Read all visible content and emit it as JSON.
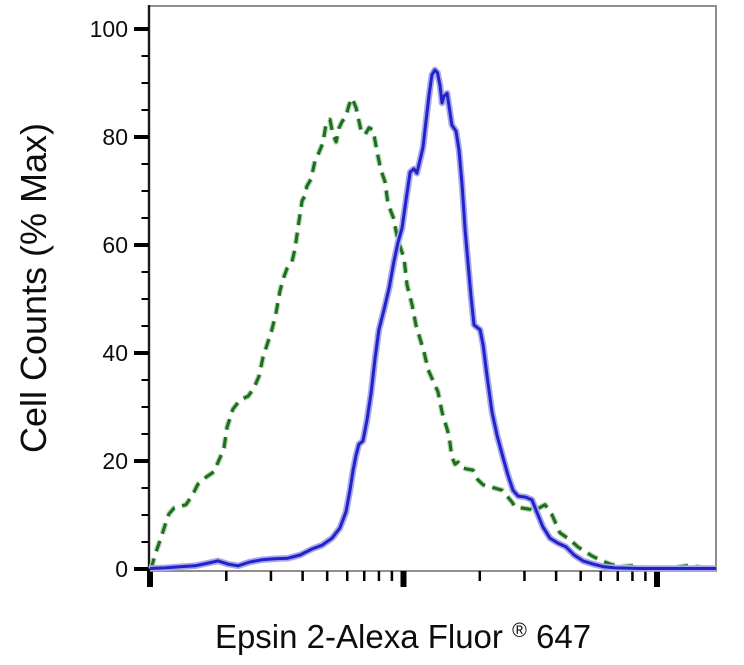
{
  "chart_data": {
    "type": "line",
    "subtype": "flow-cytometry-histogram-overlay",
    "title": "",
    "xlabel": "Epsin 2-Alexa Fluor® 647",
    "xlabel_parts": {
      "main": "Epsin 2-Alexa Fluor",
      "sup": "®",
      "suffix": " 647"
    },
    "ylabel": "Cell Counts (% Max)",
    "grid": false,
    "legend": null,
    "x_axis": {
      "scale": "log",
      "decades_shown": 2.237,
      "major_tick_decades": [
        0,
        1,
        2
      ],
      "minor_ticks": "log-spaced 2-9 per decade",
      "tick_labels_visible": false
    },
    "y_axis": {
      "min": 0,
      "max": 100,
      "major_ticks": [
        0,
        20,
        40,
        60,
        80,
        100
      ],
      "tick_labels": [
        "0",
        "20",
        "40",
        "60",
        "80",
        "100"
      ],
      "minor_tick_step": 5
    },
    "series": [
      {
        "name": "green-dashed-histogram",
        "style": "dashed",
        "color": "#1c701c",
        "halo_color": "#b9d6b9",
        "peak": {
          "u": 0.8,
          "v": 87.2
        },
        "points": [
          [
            0.004,
            0.0
          ],
          [
            0.012,
            1.3
          ],
          [
            0.024,
            3.2
          ],
          [
            0.036,
            4.8
          ],
          [
            0.047,
            6.3
          ],
          [
            0.063,
            8.7
          ],
          [
            0.075,
            10.2
          ],
          [
            0.095,
            11.3
          ],
          [
            0.142,
            11.9
          ],
          [
            0.17,
            13.9
          ],
          [
            0.189,
            15.7
          ],
          [
            0.221,
            17.0
          ],
          [
            0.252,
            18.0
          ],
          [
            0.276,
            20.6
          ],
          [
            0.292,
            22.4
          ],
          [
            0.304,
            26.3
          ],
          [
            0.327,
            29.6
          ],
          [
            0.355,
            31.3
          ],
          [
            0.387,
            32.0
          ],
          [
            0.41,
            33.5
          ],
          [
            0.43,
            35.7
          ],
          [
            0.446,
            39.3
          ],
          [
            0.465,
            42.0
          ],
          [
            0.481,
            44.3
          ],
          [
            0.497,
            47.4
          ],
          [
            0.513,
            51.5
          ],
          [
            0.525,
            53.7
          ],
          [
            0.54,
            55.6
          ],
          [
            0.56,
            56.9
          ],
          [
            0.572,
            59.3
          ],
          [
            0.584,
            63.2
          ],
          [
            0.6,
            68.2
          ],
          [
            0.611,
            69.1
          ],
          [
            0.619,
            70.9
          ],
          [
            0.635,
            72.2
          ],
          [
            0.651,
            75.6
          ],
          [
            0.667,
            77.2
          ],
          [
            0.682,
            78.9
          ],
          [
            0.694,
            82.2
          ],
          [
            0.71,
            83.2
          ],
          [
            0.722,
            80.4
          ],
          [
            0.734,
            79.1
          ],
          [
            0.746,
            81.7
          ],
          [
            0.757,
            82.8
          ],
          [
            0.773,
            83.9
          ],
          [
            0.785,
            85.9
          ],
          [
            0.797,
            87.2
          ],
          [
            0.813,
            85.4
          ],
          [
            0.832,
            81.3
          ],
          [
            0.848,
            80.4
          ],
          [
            0.864,
            81.7
          ],
          [
            0.88,
            81.3
          ],
          [
            0.896,
            77.2
          ],
          [
            0.911,
            73.9
          ],
          [
            0.927,
            71.7
          ],
          [
            0.939,
            67.6
          ],
          [
            0.959,
            65.2
          ],
          [
            0.978,
            60.9
          ],
          [
            1.002,
            57.6
          ],
          [
            1.014,
            52.6
          ],
          [
            1.034,
            48.9
          ],
          [
            1.049,
            45.2
          ],
          [
            1.081,
            40.2
          ],
          [
            1.097,
            36.9
          ],
          [
            1.136,
            32.8
          ],
          [
            1.152,
            29.1
          ],
          [
            1.179,
            24.8
          ],
          [
            1.191,
            20.7
          ],
          [
            1.203,
            19.4
          ],
          [
            1.215,
            19.8
          ],
          [
            1.231,
            18.7
          ],
          [
            1.274,
            18.3
          ],
          [
            1.294,
            16.5
          ],
          [
            1.314,
            15.6
          ],
          [
            1.389,
            14.6
          ],
          [
            1.428,
            12.4
          ],
          [
            1.44,
            11.5
          ],
          [
            1.52,
            10.9
          ],
          [
            1.558,
            11.9
          ],
          [
            1.586,
            10.0
          ],
          [
            1.617,
            6.7
          ],
          [
            1.657,
            5.4
          ],
          [
            1.688,
            4.1
          ],
          [
            1.744,
            2.4
          ],
          [
            1.783,
            1.5
          ],
          [
            1.815,
            0.9
          ],
          [
            1.854,
            0.4
          ],
          [
            1.901,
            0.6
          ],
          [
            1.945,
            0.2
          ],
          [
            1.992,
            0.1
          ],
          [
            2.043,
            0.1
          ],
          [
            2.118,
            0.6
          ],
          [
            2.157,
            0.4
          ],
          [
            2.189,
            0.1
          ],
          [
            2.233,
            0.1
          ]
        ]
      },
      {
        "name": "blue-solid-histogram",
        "style": "solid",
        "color": "#2222cc",
        "halo_color": "#a8a8ec",
        "peak": {
          "u": 1.12,
          "v": 92.4
        },
        "points": [
          [
            0.0,
            0.1
          ],
          [
            0.059,
            0.2
          ],
          [
            0.118,
            0.4
          ],
          [
            0.178,
            0.6
          ],
          [
            0.229,
            1.1
          ],
          [
            0.268,
            1.5
          ],
          [
            0.308,
            0.9
          ],
          [
            0.347,
            0.6
          ],
          [
            0.394,
            1.3
          ],
          [
            0.442,
            1.7
          ],
          [
            0.493,
            1.9
          ],
          [
            0.544,
            2.0
          ],
          [
            0.592,
            2.6
          ],
          [
            0.639,
            3.7
          ],
          [
            0.679,
            4.4
          ],
          [
            0.718,
            5.7
          ],
          [
            0.749,
            7.6
          ],
          [
            0.773,
            10.6
          ],
          [
            0.789,
            14.6
          ],
          [
            0.801,
            18.3
          ],
          [
            0.813,
            21.1
          ],
          [
            0.824,
            23.1
          ],
          [
            0.84,
            23.7
          ],
          [
            0.856,
            27.6
          ],
          [
            0.872,
            32.6
          ],
          [
            0.888,
            39.1
          ],
          [
            0.903,
            44.3
          ],
          [
            0.923,
            48.0
          ],
          [
            0.943,
            52.0
          ],
          [
            0.962,
            56.9
          ],
          [
            0.978,
            60.4
          ],
          [
            0.994,
            63.1
          ],
          [
            1.01,
            68.3
          ],
          [
            1.026,
            73.5
          ],
          [
            1.041,
            74.1
          ],
          [
            1.053,
            73.3
          ],
          [
            1.065,
            75.7
          ],
          [
            1.077,
            78.1
          ],
          [
            1.089,
            83.1
          ],
          [
            1.101,
            87.8
          ],
          [
            1.112,
            91.5
          ],
          [
            1.124,
            92.4
          ],
          [
            1.134,
            91.9
          ],
          [
            1.144,
            89.6
          ],
          [
            1.152,
            86.3
          ],
          [
            1.16,
            87.6
          ],
          [
            1.172,
            88.1
          ],
          [
            1.179,
            85.9
          ],
          [
            1.191,
            82.2
          ],
          [
            1.207,
            81.1
          ],
          [
            1.219,
            77.6
          ],
          [
            1.231,
            71.1
          ],
          [
            1.243,
            62.8
          ],
          [
            1.254,
            56.9
          ],
          [
            1.266,
            50.7
          ],
          [
            1.278,
            45.2
          ],
          [
            1.302,
            44.3
          ],
          [
            1.314,
            41.5
          ],
          [
            1.329,
            35.9
          ],
          [
            1.349,
            29.1
          ],
          [
            1.369,
            24.8
          ],
          [
            1.393,
            20.6
          ],
          [
            1.412,
            17.4
          ],
          [
            1.432,
            14.6
          ],
          [
            1.452,
            13.5
          ],
          [
            1.483,
            13.3
          ],
          [
            1.507,
            12.8
          ],
          [
            1.527,
            10.4
          ],
          [
            1.55,
            7.8
          ],
          [
            1.578,
            5.7
          ],
          [
            1.609,
            4.8
          ],
          [
            1.641,
            4.1
          ],
          [
            1.673,
            2.6
          ],
          [
            1.708,
            1.5
          ],
          [
            1.748,
            0.9
          ],
          [
            1.791,
            0.4
          ],
          [
            1.834,
            0.2
          ],
          [
            1.933,
            0.1
          ],
          [
            2.091,
            0.1
          ],
          [
            2.233,
            0.1
          ]
        ]
      }
    ],
    "colors": {
      "frame": "#8f8f8f",
      "axis": "#1a1a1a",
      "ticks": "#000000",
      "text": "#0d0d0d",
      "background": "#ffffff"
    }
  }
}
